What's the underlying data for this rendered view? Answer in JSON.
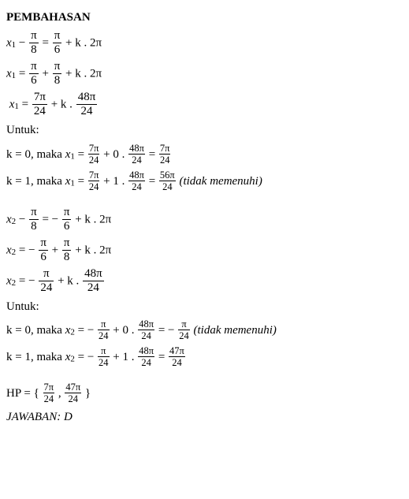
{
  "heading": "PEMBAHASAN",
  "untuk": "Untuk:",
  "x1": {
    "line1": {
      "lhs_a": "x",
      "lhs_sub": "1",
      "lhs_minus": " − ",
      "f1_num": "π",
      "f1_den": "8",
      "eq": " = ",
      "f2_num": "π",
      "f2_den": "6",
      "tail": " + k . 2π"
    },
    "line2": {
      "lhs_a": "x",
      "lhs_sub": "1",
      "eq": " = ",
      "f1_num": "π",
      "f1_den": "6",
      "plus": " + ",
      "f2_num": "π",
      "f2_den": "8",
      "tail": " + k . 2π"
    },
    "line3": {
      "lhs_a": "x",
      "lhs_sub": "1",
      "eq": " = ",
      "f1_num": "7π",
      "f1_den": "24",
      "mid": " + k . ",
      "f2_num": "48π",
      "f2_den": "24"
    },
    "k0": {
      "pre": "k = 0, maka ",
      "x": "x",
      "sub": "1",
      "eq": " = ",
      "a_num": "7π",
      "a_den": "24",
      "mid": " + 0 . ",
      "b_num": "48π",
      "b_den": "24",
      "eq2": " = ",
      "c_num": "7π",
      "c_den": "24",
      "note": ""
    },
    "k1": {
      "pre": "k = 1, maka ",
      "x": "x",
      "sub": "1",
      "eq": " = ",
      "a_num": "7π",
      "a_den": "24",
      "mid": " + 1 . ",
      "b_num": "48π",
      "b_den": "24",
      "eq2": " = ",
      "c_num": "56π",
      "c_den": "24",
      "note": " (tidak memenuhi)"
    }
  },
  "x2": {
    "line1": {
      "lhs_a": "x",
      "lhs_sub": "2",
      "lhs_minus": " − ",
      "f1_num": "π",
      "f1_den": "8",
      "eq": " = − ",
      "f2_num": "π",
      "f2_den": "6",
      "tail": " + k . 2π"
    },
    "line2": {
      "lhs_a": "x",
      "lhs_sub": "2",
      "eq": " = − ",
      "f1_num": "π",
      "f1_den": "6",
      "plus": " + ",
      "f2_num": "π",
      "f2_den": "8",
      "tail": " + k . 2π"
    },
    "line3": {
      "lhs_a": "x",
      "lhs_sub": "2",
      "eq": " = − ",
      "f1_num": "π",
      "f1_den": "24",
      "mid": " + k . ",
      "f2_num": "48π",
      "f2_den": "24"
    },
    "k0": {
      "pre": "k = 0, maka ",
      "x": "x",
      "sub": "2",
      "eq": " = − ",
      "a_num": "π",
      "a_den": "24",
      "mid": " + 0 . ",
      "b_num": "48π",
      "b_den": "24",
      "eq2": " = − ",
      "c_num": "π",
      "c_den": "24",
      "note": " (tidak memenuhi)"
    },
    "k1": {
      "pre": "k = 1, maka ",
      "x": "x",
      "sub": "2",
      "eq": " = − ",
      "a_num": "π",
      "a_den": "24",
      "mid": " + 1 . ",
      "b_num": "48π",
      "b_den": "24",
      "eq2": " = ",
      "c_num": "47π",
      "c_den": "24",
      "note": ""
    }
  },
  "hp": {
    "pre": "HP = {",
    "a_num": "7π",
    "a_den": "24",
    "comma": " , ",
    "b_num": "47π",
    "b_den": "24",
    "post": "}"
  },
  "jawaban": "JAWABAN: D"
}
